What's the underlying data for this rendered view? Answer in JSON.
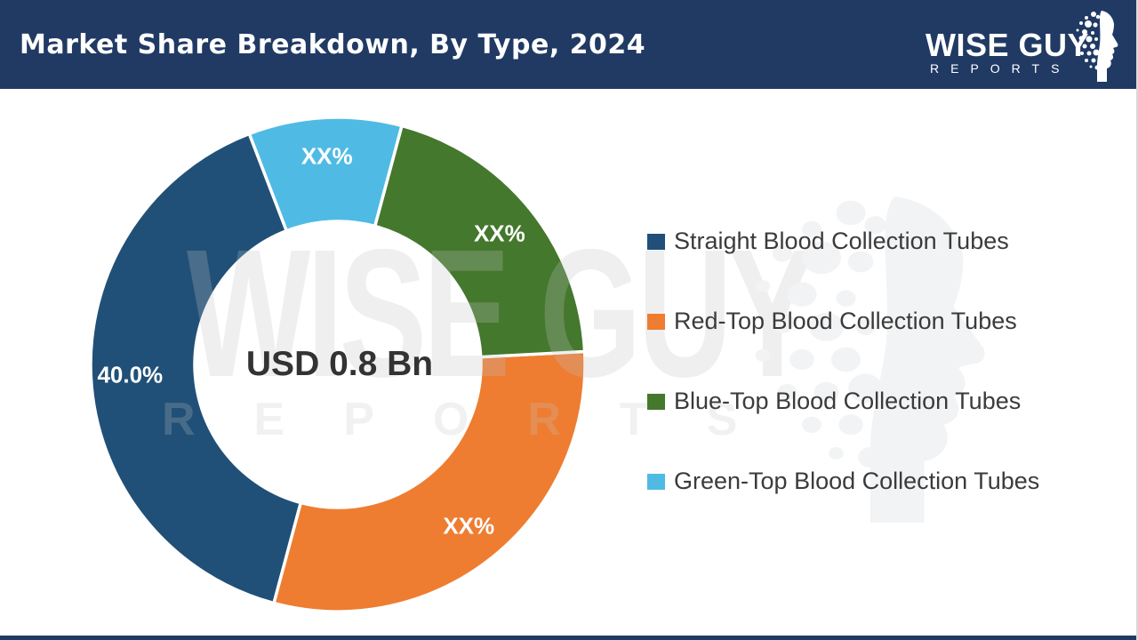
{
  "header": {
    "title": "Market Share Breakdown, By Type, 2024",
    "logo": {
      "name": "WISE GUY",
      "sub": "REPORTS"
    }
  },
  "watermark": {
    "line1": "WISE GUY",
    "line2": "REPORTS"
  },
  "chart_data": {
    "type": "pie",
    "subtype": "donut",
    "title": "Market Share Breakdown, By Type, 2024",
    "center_label": "USD 0.8 Bn",
    "start_angle_deg": 111,
    "direction": "counterclockwise",
    "legend_position": "right",
    "segments": [
      {
        "label": "Straight Blood Collection Tubes",
        "display_pct": "40.0%",
        "value_pct_est": 40,
        "color": "#205077"
      },
      {
        "label": "Red-Top Blood Collection Tubes",
        "display_pct": "XX%",
        "value_pct_est": 30,
        "color": "#EE7D31"
      },
      {
        "label": "Blue-Top Blood Collection Tubes",
        "display_pct": "XX%",
        "value_pct_est": 20,
        "color": "#44782D"
      },
      {
        "label": "Green-Top Blood Collection Tubes",
        "display_pct": "XX%",
        "value_pct_est": 10,
        "color": "#4FBBE4"
      }
    ]
  },
  "colors": {
    "header_bar": "#203A64",
    "footer_bar": "#203A64",
    "background": "#FFFFFF",
    "legend_text": "#3B3B3B",
    "center_text": "#333333",
    "slice_label_text": "#FFFFFF",
    "logo_text": "#FFFFFF"
  }
}
